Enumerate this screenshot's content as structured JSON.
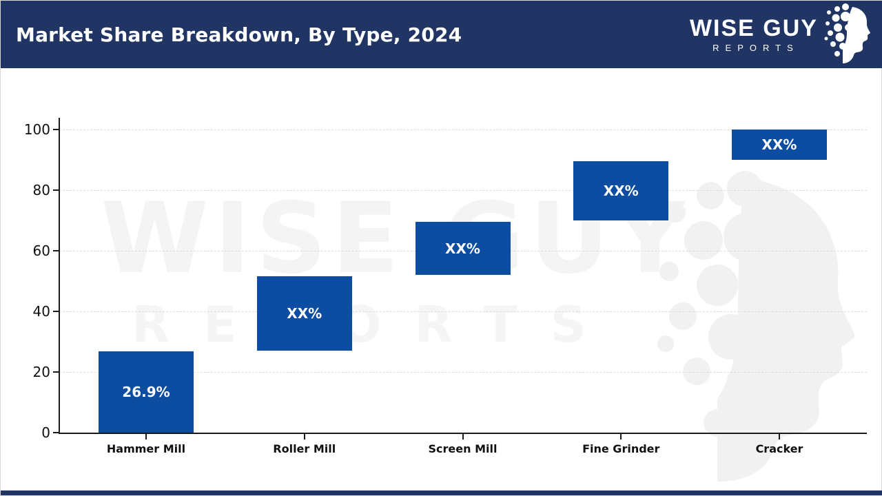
{
  "header": {
    "title": "Market Share Breakdown, By Type, 2024",
    "logo_line1": "WISE GUY",
    "logo_line2": "REPORTS"
  },
  "watermark": {
    "line1": "WISE GUY",
    "line2": "REPORTS"
  },
  "colors": {
    "header_bg": "#213564",
    "bar_fill": "#0c4da2",
    "bar_label": "#ffffff",
    "axis": "#1a1a1a",
    "grid": "#dcdcdc",
    "watermark": "#f4f4f4"
  },
  "chart_data": {
    "type": "bar",
    "subtype": "waterfall",
    "title": "Market Share Breakdown, By Type, 2024",
    "categories": [
      "Hammer Mill",
      "Roller Mill",
      "Screen Mill",
      "Fine Grinder",
      "Cracker"
    ],
    "segments": [
      {
        "category": "Hammer Mill",
        "start": 0,
        "end": 26.9,
        "label": "26.9%"
      },
      {
        "category": "Roller Mill",
        "start": 27,
        "end": 51.5,
        "label": "XX%"
      },
      {
        "category": "Screen Mill",
        "start": 52,
        "end": 69.5,
        "label": "XX%"
      },
      {
        "category": "Fine Grinder",
        "start": 70,
        "end": 89.5,
        "label": "XX%"
      },
      {
        "category": "Cracker",
        "start": 90,
        "end": 100,
        "label": "XX%"
      }
    ],
    "yticks": [
      0,
      20,
      40,
      60,
      80,
      100
    ],
    "ylim": [
      0,
      100
    ],
    "xlabel": "",
    "ylabel": "",
    "grid": "horizontal-dashed",
    "legend": "none",
    "bar_color": "#0c4da2",
    "value_label_color": "#ffffff"
  }
}
